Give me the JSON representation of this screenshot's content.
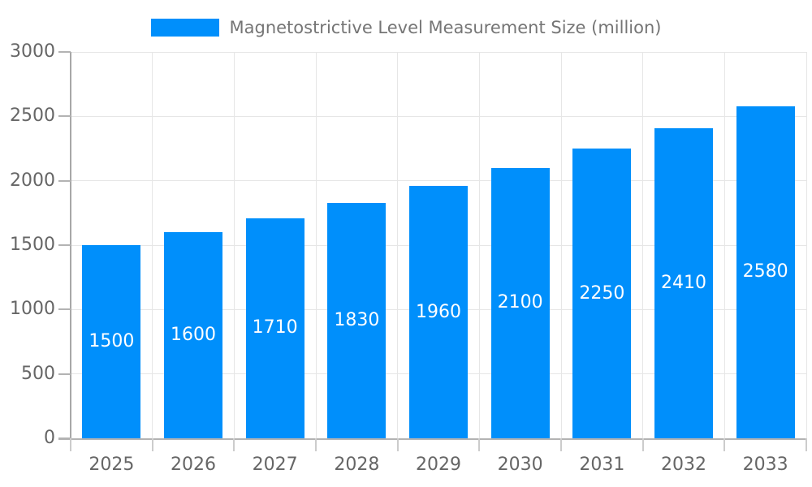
{
  "legend": {
    "label": "Magnetostrictive Level Measurement Size (million)",
    "swatch_color": "#008FFB"
  },
  "chart_data": {
    "type": "bar",
    "title": "Magnetostrictive Level Measurement Size (million)",
    "categories": [
      "2025",
      "2026",
      "2027",
      "2028",
      "2029",
      "2030",
      "2031",
      "2032",
      "2033"
    ],
    "values": [
      1500,
      1600,
      1710,
      1830,
      1960,
      2100,
      2250,
      2410,
      2580
    ],
    "xlabel": "",
    "ylabel": "",
    "ylim": [
      0,
      3000
    ],
    "ytick_step": 500,
    "yticks": [
      0,
      500,
      1000,
      1500,
      2000,
      2500,
      3000
    ],
    "grid": true,
    "legend_position": "top-center",
    "bar_color": "#008FFB",
    "value_label_color": "#ffffff",
    "value_label_position": "inside-center"
  }
}
